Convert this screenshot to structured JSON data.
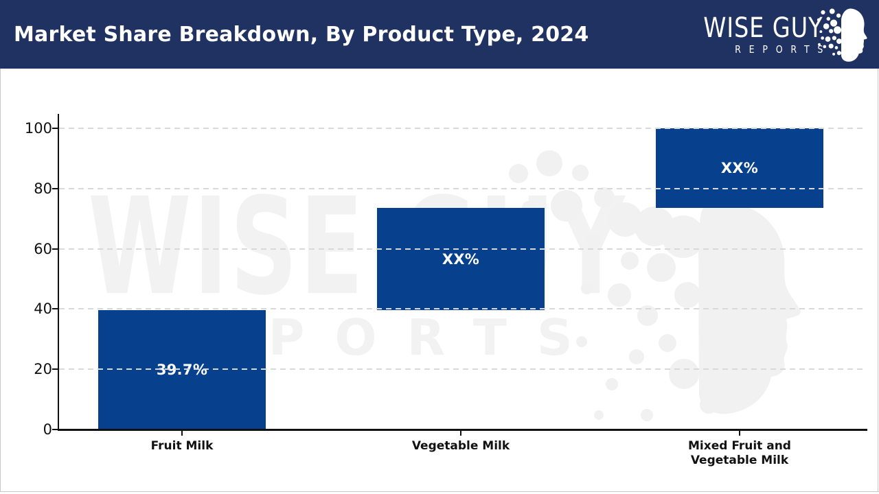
{
  "header": {
    "title": "Market Share Breakdown, By Product Type, 2024",
    "logo": {
      "line1": "WISE GUY",
      "line2": "REPORTS"
    }
  },
  "watermark": {
    "line1": "WISE GUY",
    "line2": "REPORTS"
  },
  "chart_data": {
    "type": "bar",
    "subtype": "waterfall-floating-bars",
    "title": "Market Share Breakdown, By Product Type, 2024",
    "categories": [
      "Fruit Milk",
      "Vegetable Milk",
      "Mixed Fruit and Vegetable Milk"
    ],
    "bars": [
      {
        "category": "Fruit Milk",
        "start": 0,
        "end": 39.7,
        "label": "39.7%"
      },
      {
        "category": "Vegetable Milk",
        "start": 39.7,
        "end": 73.5,
        "label": "XX%"
      },
      {
        "category": "Mixed Fruit and Vegetable Milk",
        "start": 73.5,
        "end": 100,
        "label": "XX%"
      }
    ],
    "xlabel": "",
    "ylabel": "",
    "yticks": [
      0,
      20,
      40,
      60,
      80,
      100
    ],
    "ylim": [
      0,
      104
    ],
    "grid": "horizontal-dashed",
    "legend": "none",
    "bar_color": "#07418E",
    "value_label_color": "#FFFFFF"
  },
  "colors": {
    "header_bg": "#203261",
    "bar": "#07418E",
    "grid": "#D7D9DC",
    "axis": "#111111",
    "text": "#111111",
    "watermark": "#F2F2F2",
    "frame": "#C9C9C9"
  }
}
